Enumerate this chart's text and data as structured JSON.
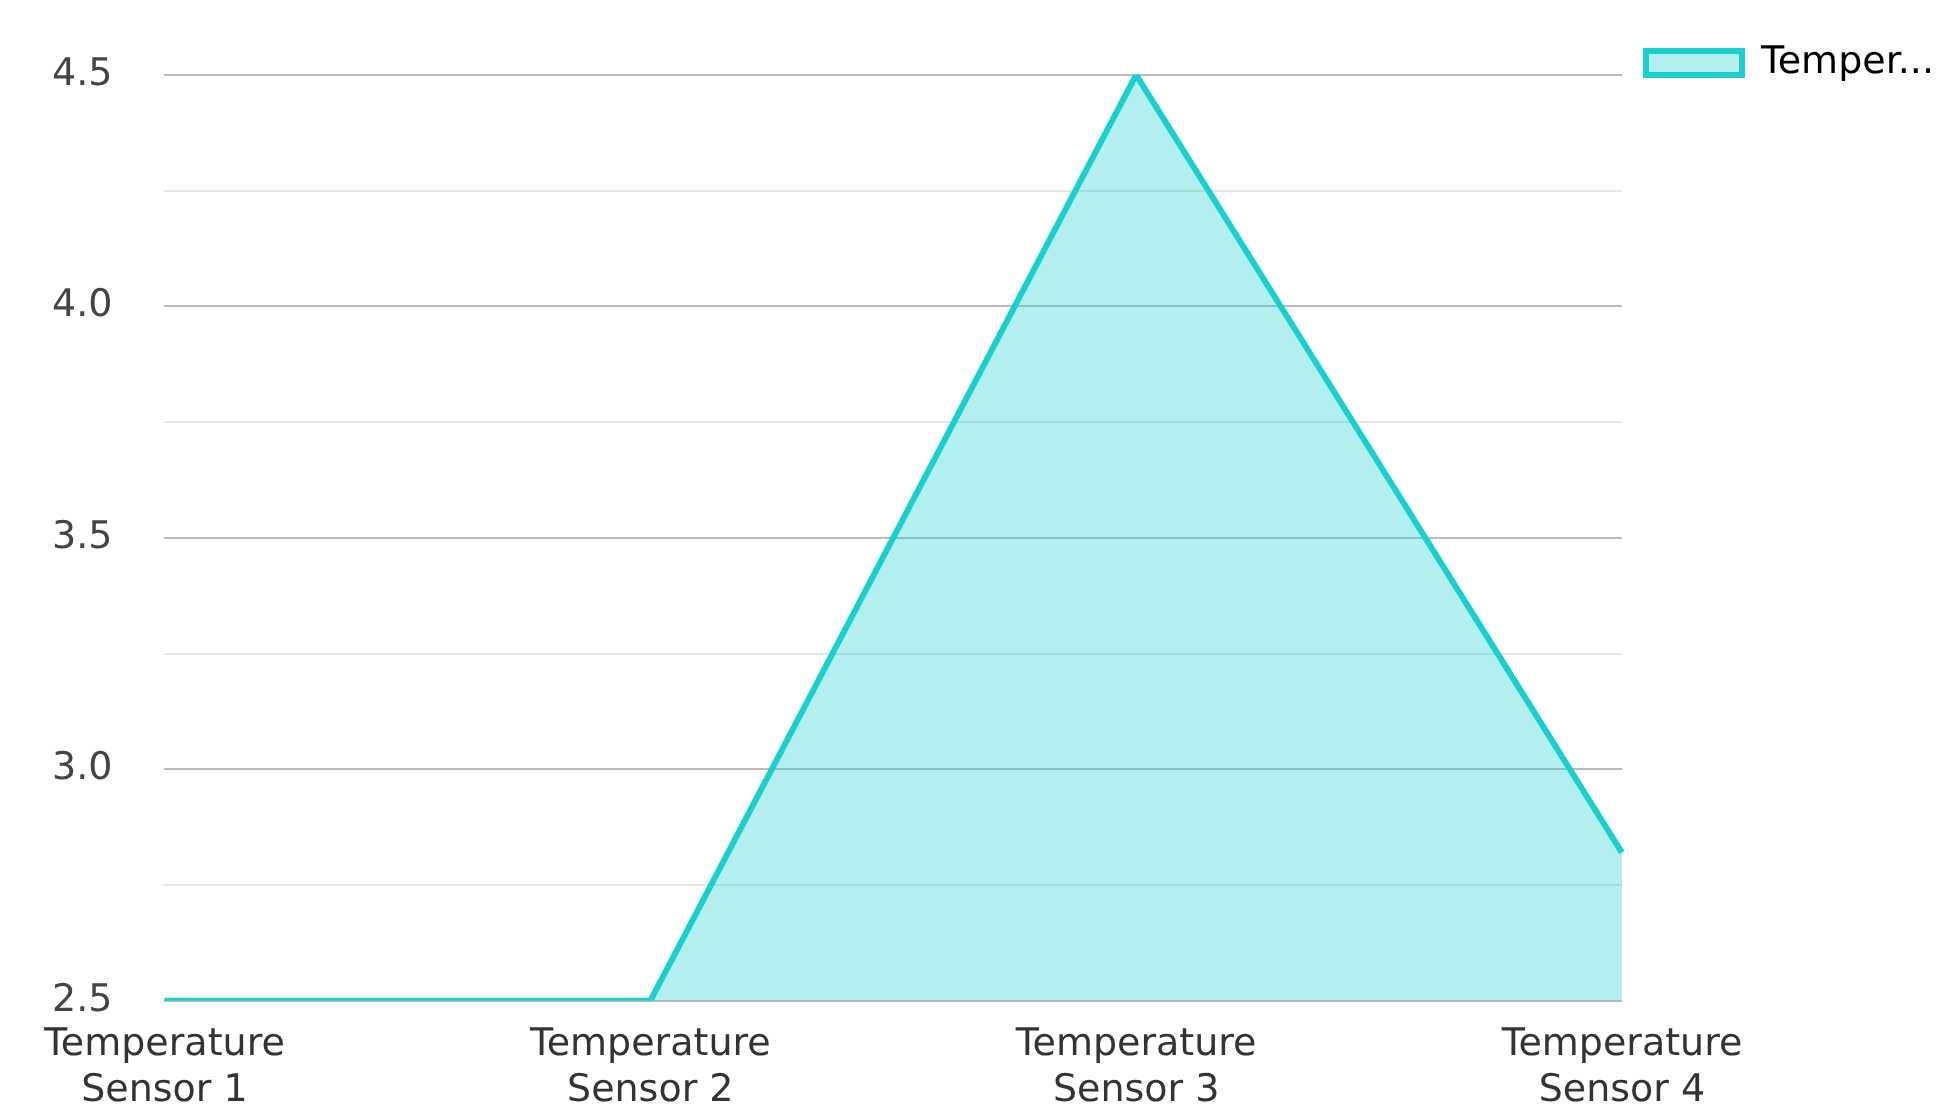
{
  "chart_data": {
    "type": "area",
    "categories": [
      "Temperature Sensor 1",
      "Temperature Sensor 2",
      "Temperature Sensor 3",
      "Temperature Sensor 4"
    ],
    "series": [
      {
        "name": "Temper...",
        "color": "#1ccfcf",
        "values": [
          2.5,
          2.5,
          4.5,
          2.82
        ]
      }
    ],
    "ylim": [
      2.5,
      4.5
    ],
    "yticks": [
      2.5,
      {
        "value": 2.75,
        "label": null
      },
      {
        "value": 3,
        "label": "3.0"
      },
      {
        "value": 3.25,
        "label": null
      },
      3.5,
      {
        "value": 3.75,
        "label": null
      },
      {
        "value": 4,
        "label": "4.0"
      },
      {
        "value": 4.25,
        "label": null
      },
      4.5
    ],
    "grid": "y",
    "legend": "top right",
    "marker": "none"
  }
}
